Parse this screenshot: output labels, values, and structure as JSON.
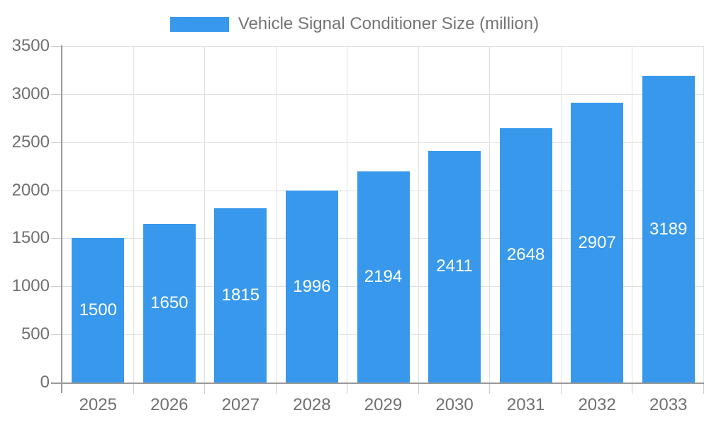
{
  "legend": {
    "label": "Vehicle Signal Conditioner Size (million)"
  },
  "colors": {
    "bar": "#3899EC",
    "grid": "#e0e0e0",
    "axis": "#999999",
    "tick": "#cccccc",
    "axis_label_text": "#707070",
    "legend_text": "#757575",
    "value_text": "#ffffff"
  },
  "chart_data": {
    "type": "bar",
    "title": "Vehicle Signal Conditioner Size (million)",
    "categories": [
      "2025",
      "2026",
      "2027",
      "2028",
      "2029",
      "2030",
      "2031",
      "2032",
      "2033"
    ],
    "values": [
      1500,
      1650,
      1815,
      1996,
      2194,
      2411,
      2648,
      2907,
      3189
    ],
    "xlabel": "",
    "ylabel": "",
    "ylim": [
      0,
      3500
    ],
    "ytick_step": 500,
    "grid": true,
    "legend_position": "top-center",
    "bar_value_labels": "inside-vertical-center"
  }
}
